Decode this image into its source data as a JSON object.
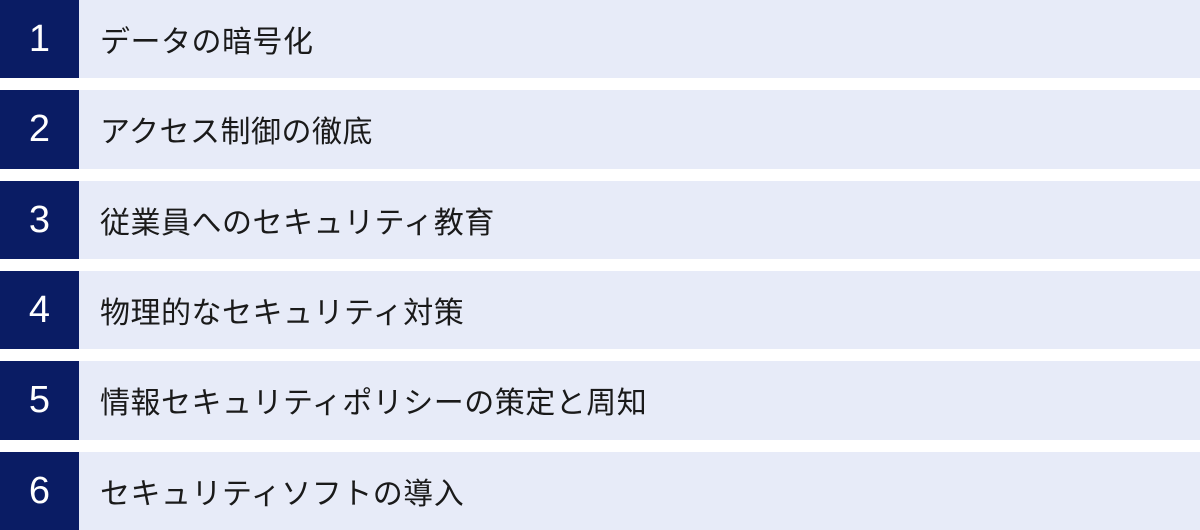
{
  "list": {
    "items": [
      {
        "number": "1",
        "label": "データの暗号化"
      },
      {
        "number": "2",
        "label": "アクセス制御の徹底"
      },
      {
        "number": "3",
        "label": "従業員へのセキュリティ教育"
      },
      {
        "number": "4",
        "label": "物理的なセキュリティ対策"
      },
      {
        "number": "5",
        "label": "情報セキュリティポリシーの策定と周知"
      },
      {
        "number": "6",
        "label": "セキュリティソフトの導入"
      }
    ]
  },
  "colors": {
    "number_box": "#0a1c64",
    "row_background": "#e7ebf8",
    "separator": "#ffffff",
    "label_text": "#1a1a1a",
    "number_text": "#ffffff"
  }
}
